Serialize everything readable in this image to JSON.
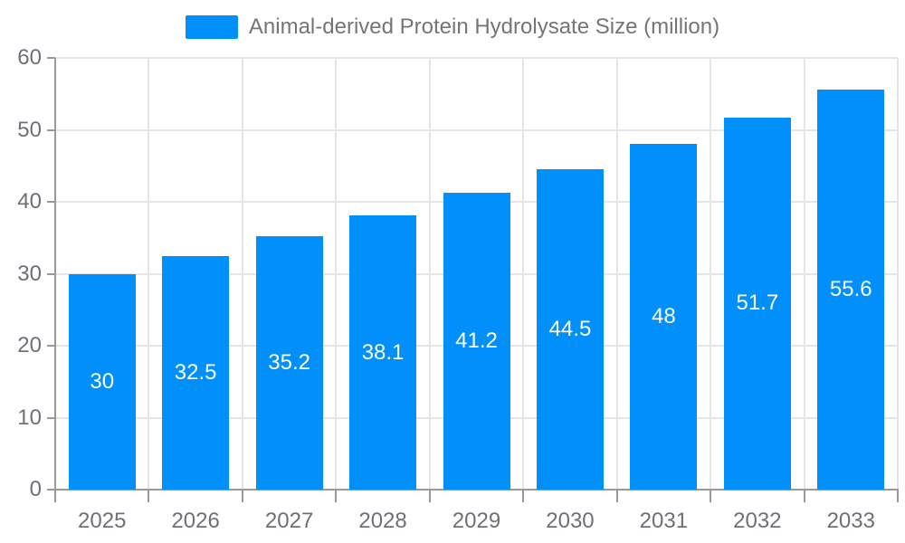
{
  "legend": {
    "label": "Animal-derived Protein Hydrolysate Size (million)",
    "swatch_color": "#008FFB"
  },
  "chart_data": {
    "type": "bar",
    "title": "Animal-derived Protein Hydrolysate Size (million)",
    "categories": [
      "2025",
      "2026",
      "2027",
      "2028",
      "2029",
      "2030",
      "2031",
      "2032",
      "2033"
    ],
    "values": [
      30,
      32.5,
      35.2,
      38.1,
      41.2,
      44.5,
      48,
      51.7,
      55.6
    ],
    "value_labels": [
      "30",
      "32.5",
      "35.2",
      "38.1",
      "41.2",
      "44.5",
      "48",
      "51.7",
      "55.6"
    ],
    "xlabel": "",
    "ylabel": "",
    "ylim": [
      0,
      60
    ],
    "yticks": [
      0,
      10,
      20,
      30,
      40,
      50,
      60
    ],
    "grid": true,
    "legend_position": "top",
    "bar_color": "#008FFB",
    "value_label_color": "#ffffff",
    "axis_text_color": "#6e7079",
    "grid_color": "#e5e5e5",
    "axis_line_color": "#999999"
  }
}
